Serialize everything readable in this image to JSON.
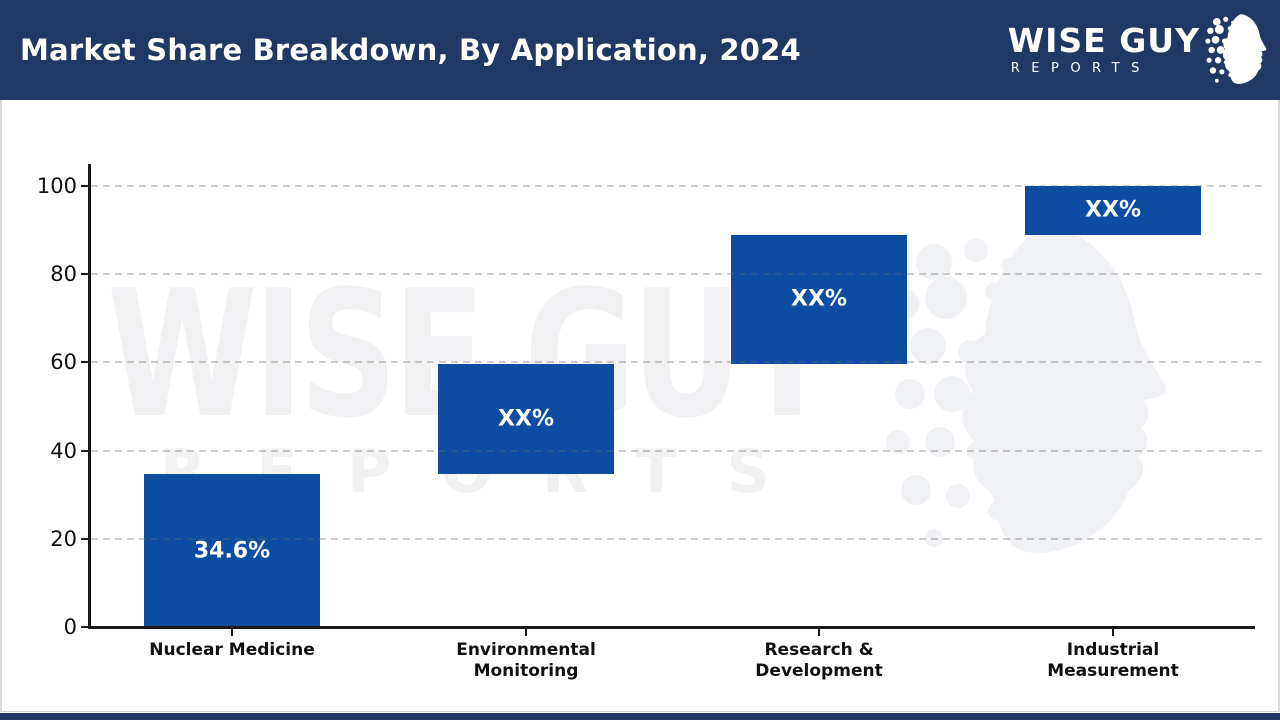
{
  "header": {
    "title": "Market Share Breakdown, By Application, 2024",
    "logo": {
      "line1": "WISE GUY",
      "line2": "REPORTS"
    }
  },
  "watermark": {
    "line1": "WISE GUY",
    "line2": "REPORTS"
  },
  "chart_data": {
    "type": "bar",
    "subtype": "waterfall",
    "title": "Market Share Breakdown, By Application, 2024",
    "categories": [
      "Nuclear Medicine",
      "Environmental\nMonitoring",
      "Research &\nDevelopment",
      "Industrial\nMeasurement"
    ],
    "segments": [
      {
        "category": "Nuclear Medicine",
        "start": 0,
        "end": 34.6,
        "label": "34.6%"
      },
      {
        "category": "Environmental Monitoring",
        "start": 34.6,
        "end": 59.6,
        "label": "XX%"
      },
      {
        "category": "Research & Development",
        "start": 59.6,
        "end": 89.0,
        "label": "XX%"
      },
      {
        "category": "Industrial Measurement",
        "start": 89.0,
        "end": 100,
        "label": "XX%"
      }
    ],
    "y_ticks": [
      0,
      20,
      40,
      60,
      80,
      100
    ],
    "ylim": [
      0,
      105
    ],
    "xlabel": "",
    "ylabel": "",
    "grid": "dashed-horizontal",
    "legend": "none"
  },
  "colors": {
    "header_bg": "#1F3864",
    "footer_bg": "#1F3864",
    "bar": "#0C4DA2",
    "axis": "#1A1A1A",
    "grid": "#C9C9C9",
    "watermark": "#F1F1F3",
    "label_on_bar": "#FFFFFF"
  }
}
